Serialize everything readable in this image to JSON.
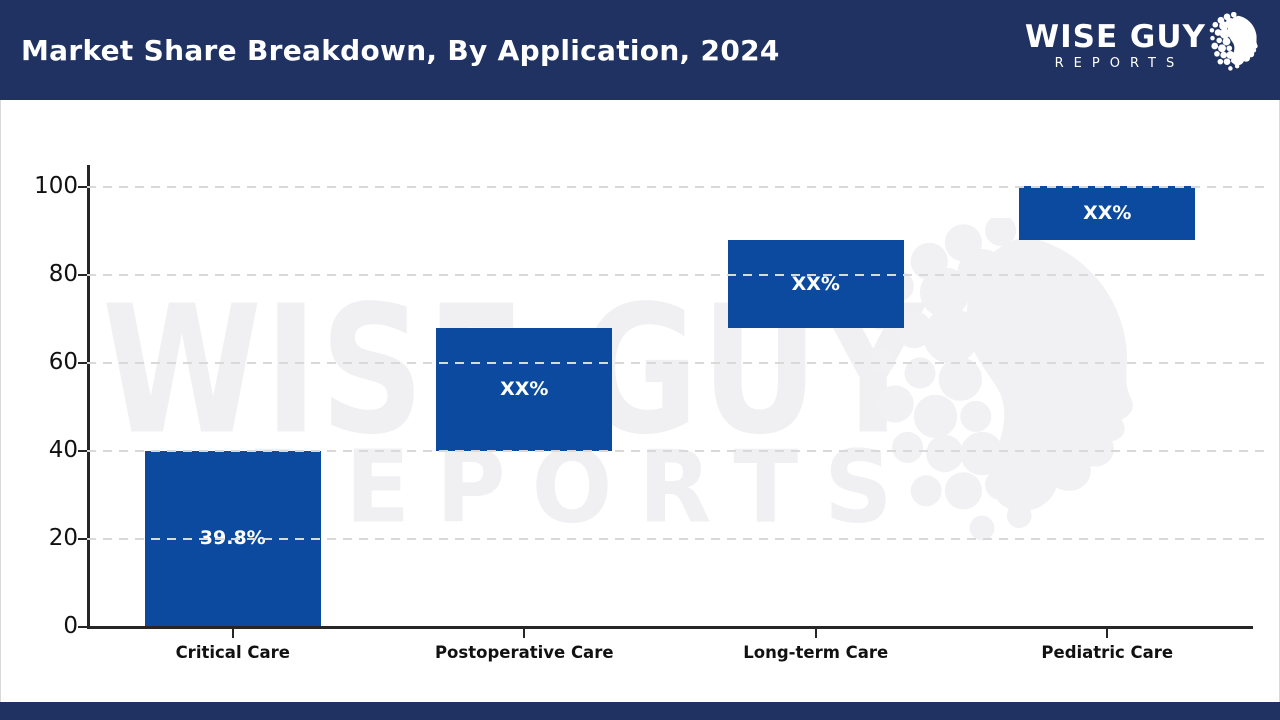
{
  "header": {
    "title": "Market Share Breakdown, By Application, 2024",
    "bg_color": "#1f3262",
    "text_color": "#ffffff",
    "logo": {
      "line1": "WISE GUY",
      "line2": "REPORTS"
    }
  },
  "watermark": {
    "line1": "WISE GUY",
    "line2": "REPORTS"
  },
  "footer": {
    "bg_color": "#1f3262"
  },
  "chart_data": {
    "type": "bar",
    "variant": "stacked-waterfall",
    "title": "Market Share Breakdown, By Application, 2024",
    "categories": [
      "Critical Care",
      "Postoperative Care",
      "Long-term Care",
      "Pediatric Care"
    ],
    "segments": [
      {
        "category": "Critical Care",
        "start": 0,
        "end": 39.8,
        "value": 39.8,
        "label": "39.8%"
      },
      {
        "category": "Postoperative Care",
        "start": 39.8,
        "end": 67.7,
        "value": 27.9,
        "label": "XX%"
      },
      {
        "category": "Long-term Care",
        "start": 67.7,
        "end": 87.7,
        "value": 20.0,
        "label": "XX%"
      },
      {
        "category": "Pediatric Care",
        "start": 87.7,
        "end": 100,
        "value": 12.3,
        "label": "XX%"
      }
    ],
    "y_ticks": [
      0,
      20,
      40,
      60,
      80,
      100
    ],
    "ylim": [
      0,
      104.5
    ],
    "xlabel": "",
    "ylabel": "",
    "legend": "none",
    "grid": {
      "axis": "y",
      "style": "dashed",
      "color": "#d9d9d9",
      "drawn_above_bars": true
    },
    "bar_color": "#0b4a9e",
    "bar_label_color": "#ffffff",
    "axis_color": "#262626"
  }
}
